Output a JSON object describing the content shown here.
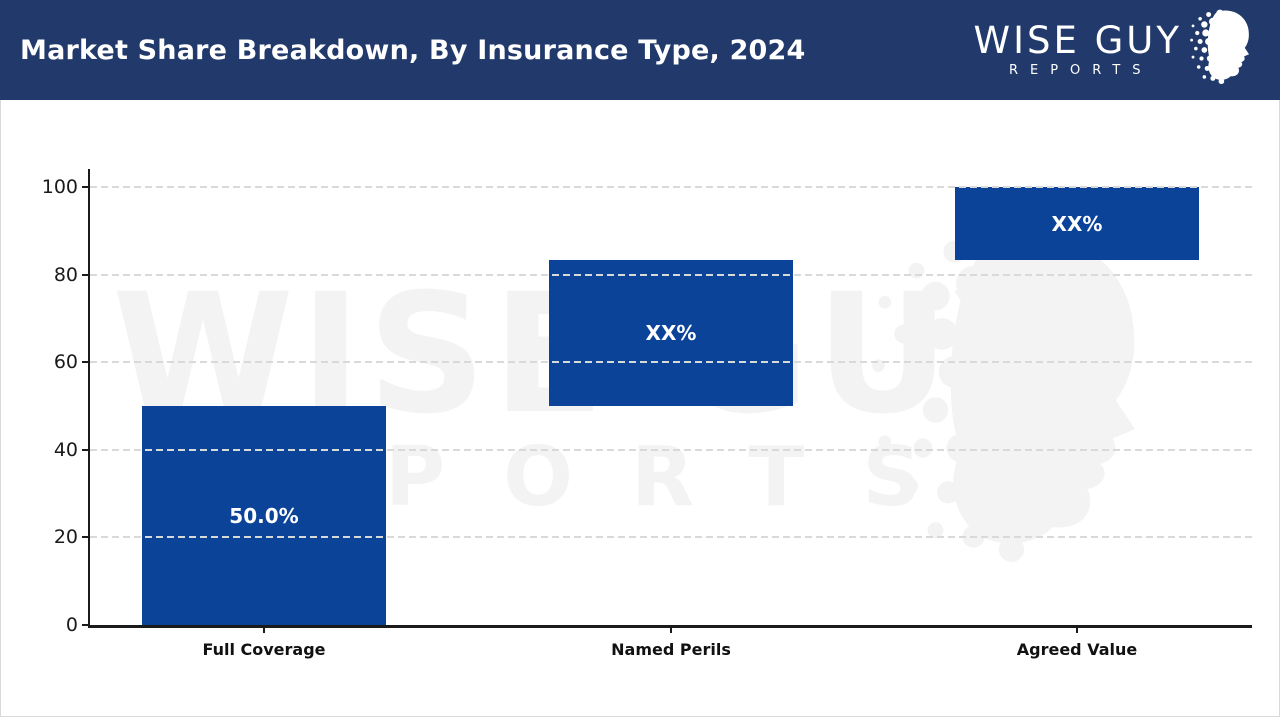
{
  "header": {
    "title": "Market Share Breakdown, By Insurance Type, 2024",
    "logo": {
      "line1": "WISE GUY",
      "line2": "REPORTS"
    }
  },
  "watermark": {
    "line1": "WISE GUY",
    "line2": "REPORTS"
  },
  "chart_data": {
    "type": "bar",
    "variant": "waterfall",
    "title": "Market Share Breakdown, By Insurance Type, 2024",
    "categories": [
      "Full Coverage",
      "Named Perils",
      "Agreed Value"
    ],
    "segments": [
      {
        "category": "Full Coverage",
        "from": 0,
        "to": 50.0,
        "label": "50.0%"
      },
      {
        "category": "Named Perils",
        "from": 50.0,
        "to": 83.3,
        "label": "XX%"
      },
      {
        "category": "Agreed Value",
        "from": 83.3,
        "to": 100.0,
        "label": "XX%"
      }
    ],
    "y_ticks": [
      0,
      20,
      40,
      60,
      80,
      100
    ],
    "ylim": [
      0,
      104
    ],
    "xlabel": "",
    "ylabel": "",
    "legend": "none",
    "grid": "horizontal-dashed",
    "colors": {
      "bar": "#0b4399",
      "grid": "#d9d9d9",
      "axis": "#1a1a1a",
      "bar_label": "#ffffff",
      "header_bg": "#21396b",
      "watermark": "#f3f3f3"
    }
  }
}
